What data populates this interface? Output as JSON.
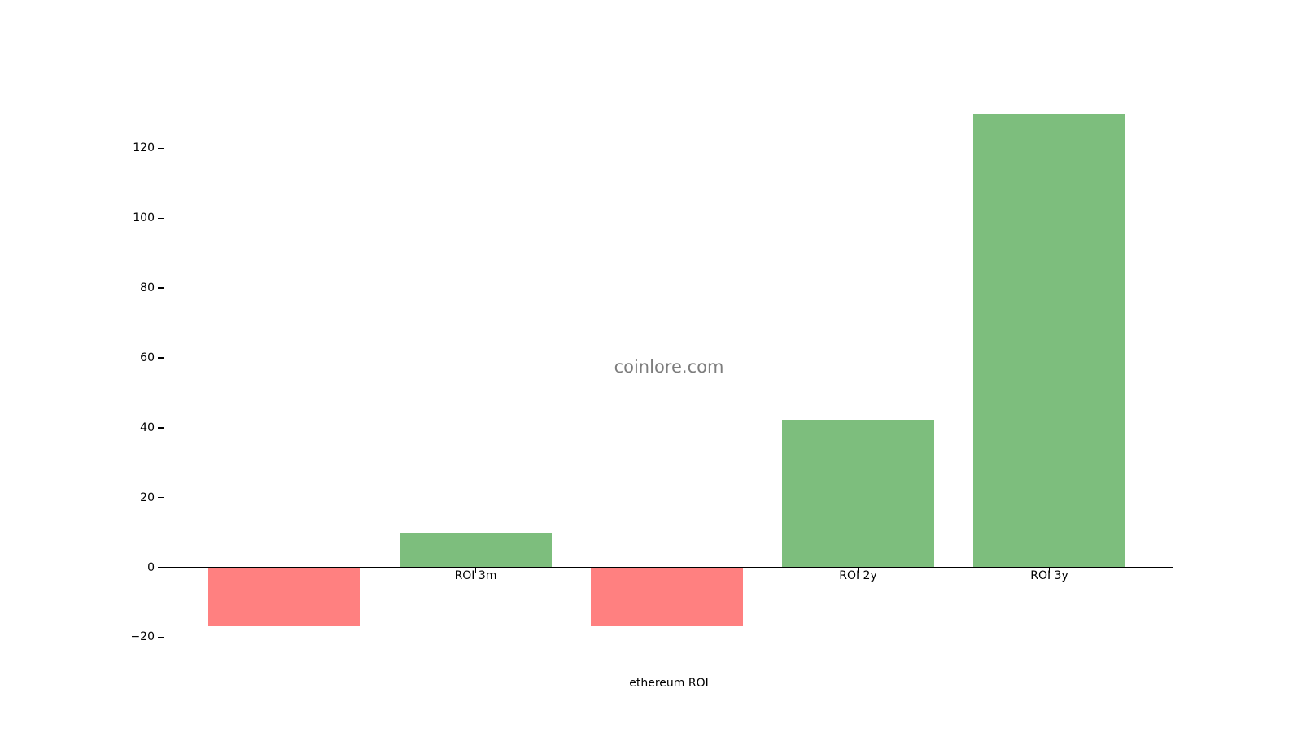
{
  "chart_data": {
    "type": "bar",
    "title": "",
    "xlabel": "ethereum ROI",
    "ylabel": "",
    "categories": [
      "",
      "ROI 3m",
      "",
      "ROI 2y",
      "ROI 3y"
    ],
    "values": [
      -17,
      10,
      -17,
      42,
      130
    ],
    "series": [
      {
        "name": "ethereum ROI %",
        "values": [
          -17,
          10,
          -17,
          42,
          130
        ]
      }
    ],
    "positive_color": "#7DBE7D",
    "negative_color": "#FF8080",
    "axis_color": "#000000",
    "text_color": "#000000",
    "yticks": [
      -20,
      0,
      20,
      40,
      60,
      80,
      100,
      120
    ],
    "ylim": [
      -24.4,
      137.4
    ],
    "grid": false,
    "legend_position": "none",
    "background": "#ffffff",
    "watermark": "coinlore.com"
  }
}
